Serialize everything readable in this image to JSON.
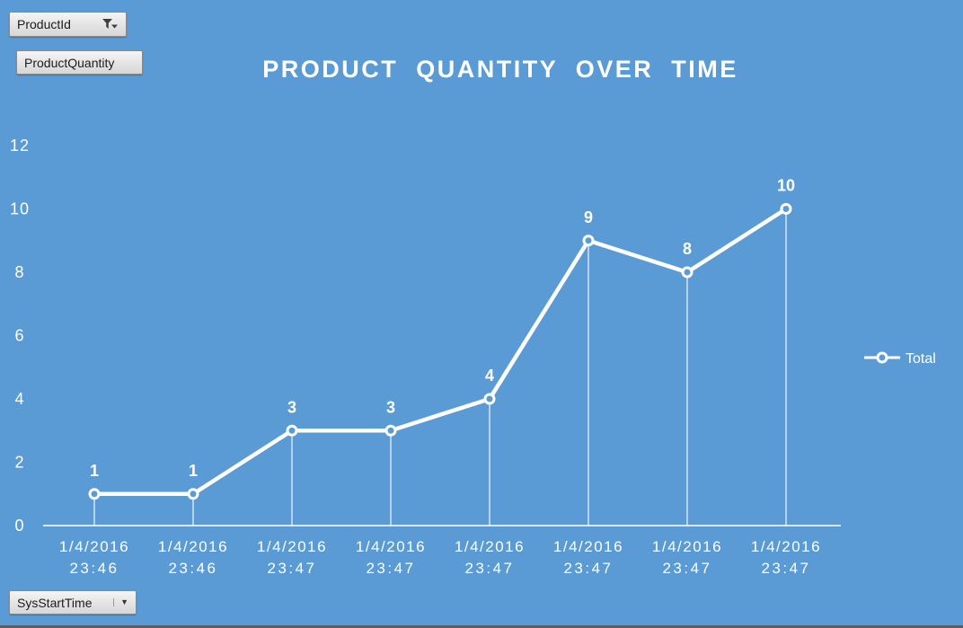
{
  "colors": {
    "background": "#5B9BD5",
    "text": "#ffffff",
    "series_line": "#ffffff",
    "button_face": "#dedede",
    "button_border": "#8a8a8a"
  },
  "field_buttons": {
    "product_id": "ProductId",
    "product_quantity": "ProductQuantity",
    "sys_start_time": "SysStartTime"
  },
  "chart_data": {
    "type": "line",
    "title": "PRODUCT QUANTITY OVER TIME",
    "categories": [
      "1/4/2016 23:46",
      "1/4/2016 23:46",
      "1/4/2016 23:47",
      "1/4/2016 23:47",
      "1/4/2016 23:47",
      "1/4/2016 23:47",
      "1/4/2016 23:47",
      "1/4/2016 23:47"
    ],
    "series": [
      {
        "name": "Total",
        "values": [
          1,
          1,
          3,
          3,
          4,
          9,
          8,
          10
        ]
      }
    ],
    "xlabel": "",
    "ylabel": "",
    "ylim": [
      0,
      12
    ],
    "ytick_step": 2,
    "yticks": [
      0,
      2,
      4,
      6,
      8,
      10,
      12
    ],
    "grid": false,
    "data_labels": true,
    "drop_lines": true,
    "legend_position": "right"
  },
  "legend": {
    "label": "Total"
  }
}
